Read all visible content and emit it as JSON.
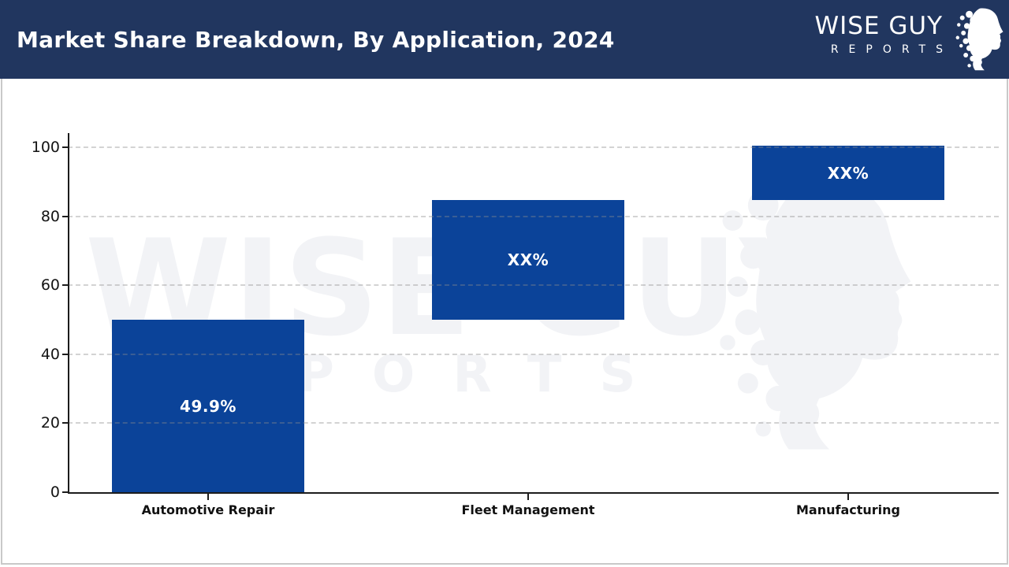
{
  "header": {
    "title": "Market Share Breakdown, By Application, 2024",
    "bg_color": "#21365f",
    "text_color": "#ffffff"
  },
  "logo": {
    "line1": "WISE GUY",
    "line2": "REPORTS",
    "icon": "dotted-head-profile"
  },
  "watermark": {
    "line1": "WISE GUY",
    "line2": "REPORTS",
    "icon": "dotted-head-profile",
    "color": "#f2f3f6"
  },
  "chart_data": {
    "type": "bar",
    "subtype": "stacked-waterfall",
    "title": "Market Share Breakdown, By Application, 2024",
    "categories": [
      "Automotive Repair",
      "Fleet Management",
      "Manufacturing"
    ],
    "segments": [
      {
        "category": "Automotive Repair",
        "start": 0,
        "end": 49.9,
        "label": "49.9%"
      },
      {
        "category": "Fleet Management",
        "start": 49.9,
        "end": 84.7,
        "label": "XX%"
      },
      {
        "category": "Manufacturing",
        "start": 84.7,
        "end": 100.4,
        "label": "XX%"
      }
    ],
    "xlabel": "",
    "ylabel": "",
    "ylim": [
      0,
      104
    ],
    "yticks": [
      0,
      20,
      40,
      60,
      80,
      100
    ],
    "grid": {
      "horizontal": true,
      "style": "dashed",
      "drawn_over_bars": true
    },
    "legend": null,
    "bar_color": "#0b4399",
    "bar_label_color": "#ffffff",
    "axis_color": "#1c1c1c"
  }
}
